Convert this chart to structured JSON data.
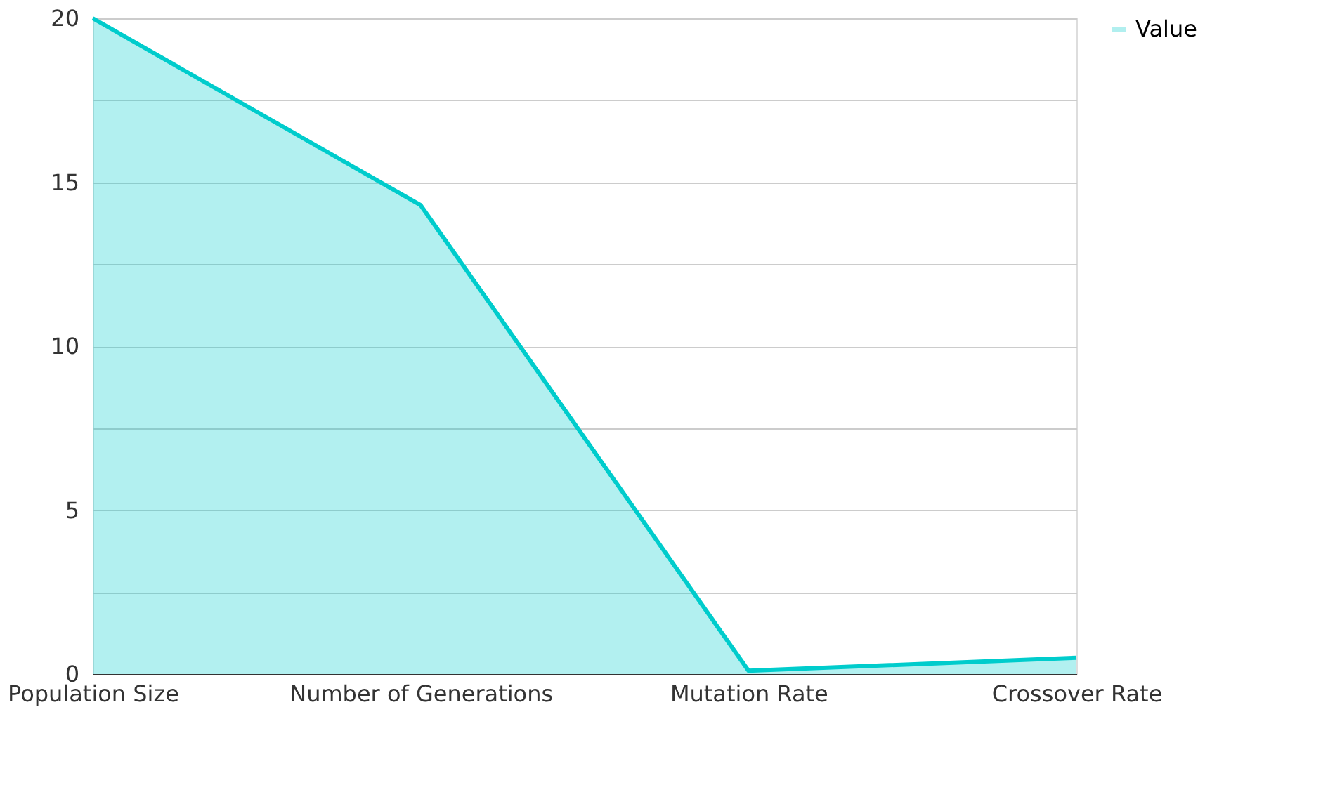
{
  "chart_data": {
    "type": "area",
    "categories": [
      "Population Size",
      "Number of Generations",
      "Mutation Rate",
      "Crossover Rate"
    ],
    "series": [
      {
        "name": "Value",
        "color": "#00cccc",
        "values": [
          20,
          14.3,
          0.1,
          0.5
        ]
      }
    ],
    "ylim": [
      0,
      20
    ],
    "yticks": [
      0,
      {
        "value": 2.5,
        "label": null
      },
      5,
      {
        "value": 7.5,
        "label": null
      },
      10,
      {
        "value": 12.5,
        "label": null
      },
      15,
      {
        "value": 17.5,
        "label": null
      },
      20
    ],
    "grid": "y",
    "legend": "top right"
  }
}
